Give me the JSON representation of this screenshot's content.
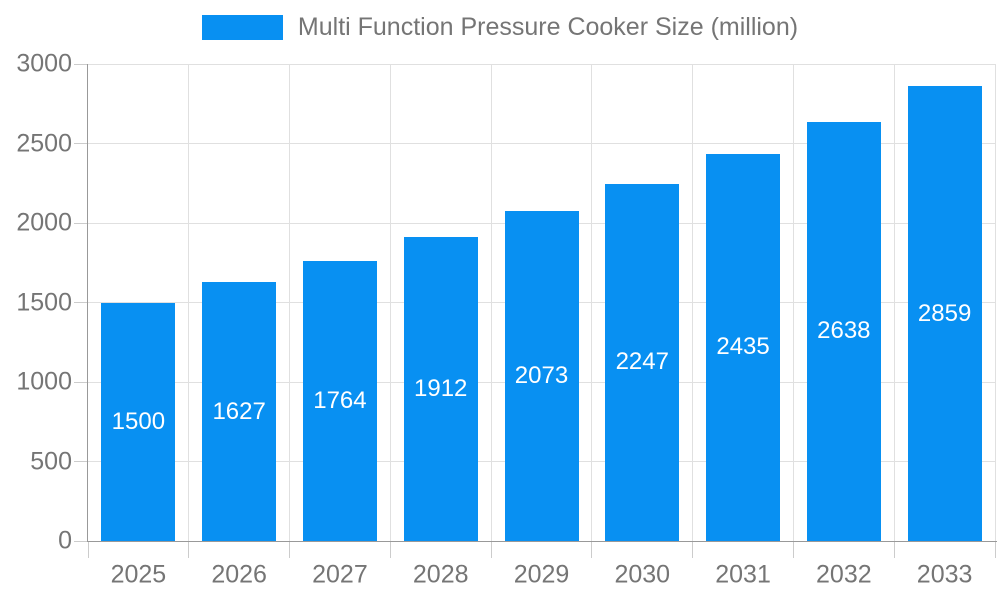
{
  "legend": {
    "label": "Multi Function Pressure Cooker Size (million)"
  },
  "colors": {
    "bar": "#0890f2",
    "grid_line": "#e0e0e0",
    "axis_line": "#999999",
    "tick_mark": "#cccccc",
    "tick_label": "#757575",
    "legend_text": "#757575",
    "value_label": "#ffffff",
    "background": "#ffffff"
  },
  "chart_data": {
    "type": "bar",
    "title": "",
    "xlabel": "",
    "ylabel": "",
    "categories": [
      "2025",
      "2026",
      "2027",
      "2028",
      "2029",
      "2030",
      "2031",
      "2032",
      "2033"
    ],
    "series": [
      {
        "name": "Multi Function Pressure Cooker Size (million)",
        "values": [
          1500,
          1627,
          1764,
          1912,
          2073,
          2247,
          2435,
          2638,
          2859
        ]
      }
    ],
    "ylim": [
      0,
      3000
    ],
    "yticks": [
      0,
      500,
      1000,
      1500,
      2000,
      2500,
      3000
    ],
    "grid": true,
    "legend_position": "top",
    "bar_labels": "inside-center"
  }
}
